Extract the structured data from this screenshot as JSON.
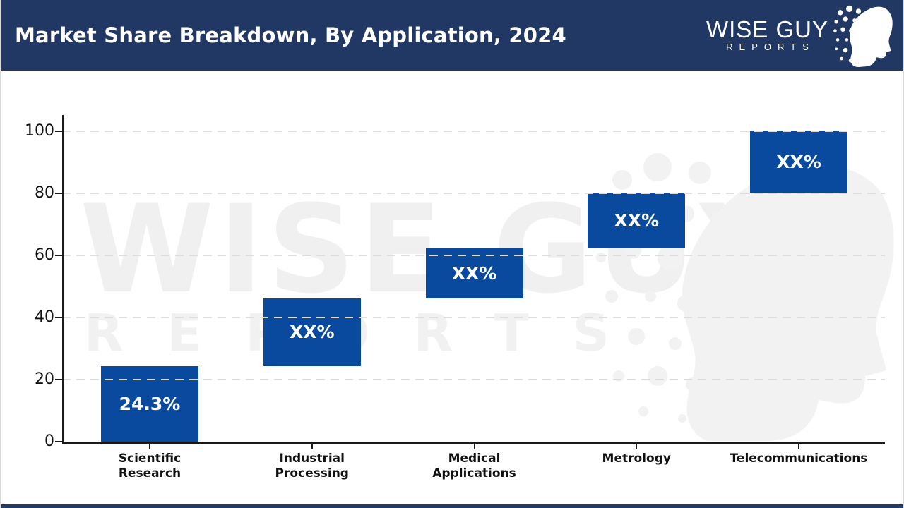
{
  "header": {
    "title": "Market Share Breakdown, By Application, 2024",
    "logo": {
      "name": "WISE GUY",
      "sub": "REPORTS"
    }
  },
  "watermark": {
    "line1": "WISE GUY",
    "line2": "REPORTS"
  },
  "chart_data": {
    "type": "bar",
    "subtype": "waterfall",
    "title": "Market Share Breakdown, By Application, 2024",
    "xlabel": "",
    "ylabel": "",
    "ylim": [
      0,
      105
    ],
    "yticks": [
      0,
      20,
      40,
      60,
      80,
      100
    ],
    "grid": "horizontal-dashed-over-bars",
    "legend": "none",
    "bar_color": "#0a4a9e",
    "bar_label_color": "#ffffff",
    "categories": [
      "Scientific Research",
      "Industrial Processing",
      "Medical Applications",
      "Metrology",
      "Telecommunications"
    ],
    "category_lines": [
      [
        "Scientific",
        "Research"
      ],
      [
        "Industrial",
        "Processing"
      ],
      [
        "Medical",
        "Applications"
      ],
      [
        "Metrology"
      ],
      [
        "Telecommunications"
      ]
    ],
    "segments": [
      {
        "category": "Scientific Research",
        "start": 0,
        "end": 24.3,
        "value_label": "24.3%"
      },
      {
        "category": "Industrial Processing",
        "start": 24.3,
        "end": 46.2,
        "value_label": "XX%"
      },
      {
        "category": "Medical Applications",
        "start": 46.2,
        "end": 62.2,
        "value_label": "XX%"
      },
      {
        "category": "Metrology",
        "start": 62.2,
        "end": 80.3,
        "value_label": "XX%"
      },
      {
        "category": "Telecommunications",
        "start": 80.3,
        "end": 100,
        "value_label": "XX%"
      }
    ]
  },
  "colors": {
    "header_bg": "#203863",
    "footer_bg": "#203863",
    "bar": "#0a4a9e",
    "grid": "#dcdcdc",
    "axis": "#1a1a1a",
    "watermark": "#f0f0f0"
  }
}
